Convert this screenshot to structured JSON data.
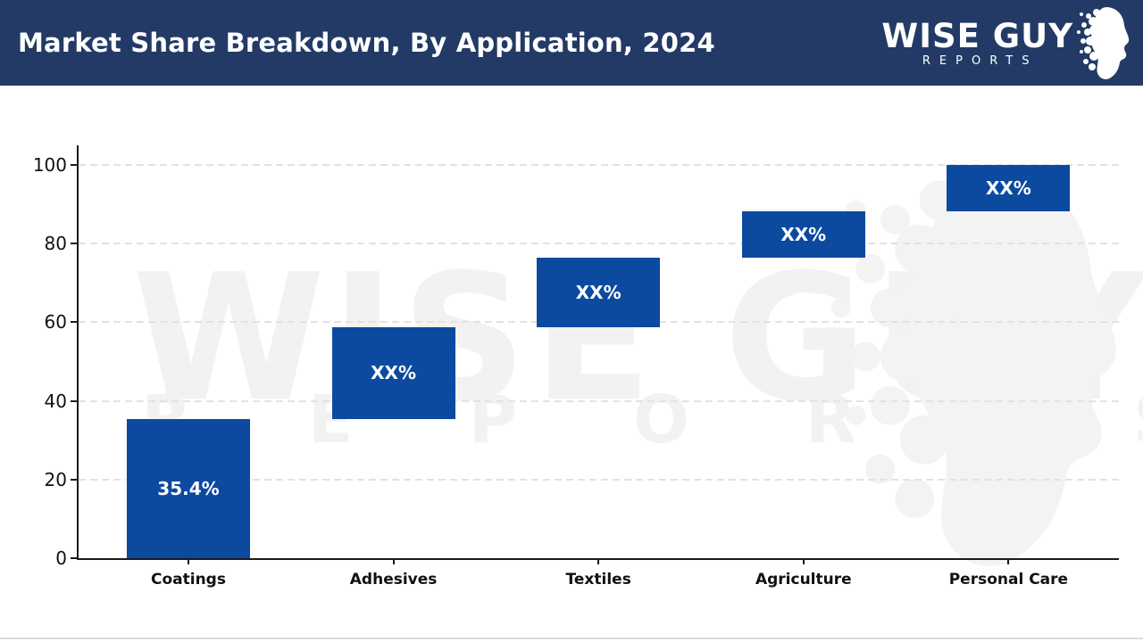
{
  "header": {
    "title": "Market Share Breakdown, By Application, 2024",
    "logo": {
      "line1": "WISE GUY",
      "line2": "REPORTS"
    }
  },
  "watermark": {
    "line1": "WISE GUY",
    "line2": "REPORTS"
  },
  "colors": {
    "header_bg": "#233A66",
    "bar_fill": "#0C4AA0",
    "axis": "#1a1a1a",
    "grid": "#e2e2e2",
    "bar_label": "#ffffff",
    "watermark": "#f2f2f2"
  },
  "chart_data": {
    "type": "bar",
    "subtype": "waterfall",
    "title": "Market Share Breakdown, By Application, 2024",
    "categories": [
      "Coatings",
      "Adhesives",
      "Textiles",
      "Agriculture",
      "Personal Care"
    ],
    "segments": [
      {
        "category": "Coatings",
        "start": 0,
        "end": 35.4,
        "label": "35.4%"
      },
      {
        "category": "Adhesives",
        "start": 35.4,
        "end": 58.8,
        "label": "XX%"
      },
      {
        "category": "Textiles",
        "start": 58.8,
        "end": 76.4,
        "label": "XX%"
      },
      {
        "category": "Agriculture",
        "start": 76.4,
        "end": 88.2,
        "label": "XX%"
      },
      {
        "category": "Personal Care",
        "start": 88.2,
        "end": 100,
        "label": "XX%"
      }
    ],
    "yticks": [
      0,
      20,
      40,
      60,
      80,
      100
    ],
    "ylim": [
      0,
      105
    ],
    "xlabel": "",
    "ylabel": "",
    "grid": "horizontal-dashed",
    "legend": "none"
  }
}
